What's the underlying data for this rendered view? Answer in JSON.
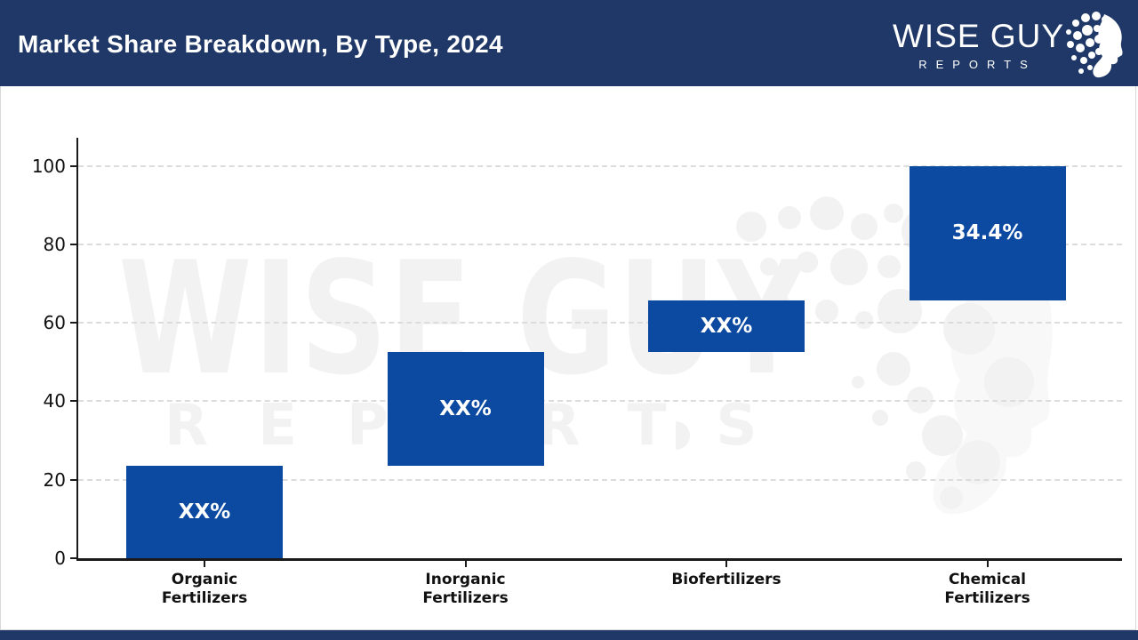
{
  "header": {
    "title": "Market Share Breakdown, By Type, 2024",
    "bg_color": "#1f3867",
    "logo": {
      "brand": "WISE GUY",
      "sub": "REPORTS"
    }
  },
  "watermark": {
    "brand": "WISE GUY",
    "sub": "REPORTS"
  },
  "chart_data": {
    "type": "bar",
    "variant": "floating-waterfall",
    "title": "Market Share Breakdown, By Type, 2024",
    "categories": [
      "Organic Fertilizers",
      "Inorganic Fertilizers",
      "Biofertilizers",
      "Chemical Fertilizers"
    ],
    "segments": [
      {
        "category": "Organic Fertilizers",
        "start": 0,
        "end": 23.5,
        "label": "XX%"
      },
      {
        "category": "Inorganic Fertilizers",
        "start": 23.5,
        "end": 52.5,
        "label": "XX%"
      },
      {
        "category": "Biofertilizers",
        "start": 52.5,
        "end": 65.6,
        "label": "XX%"
      },
      {
        "category": "Chemical Fertilizers",
        "start": 65.6,
        "end": 100,
        "label": "34.4%"
      }
    ],
    "ylim": [
      0,
      100
    ],
    "yticks": [
      0,
      20,
      40,
      60,
      80,
      100
    ],
    "grid": {
      "horizontal": true,
      "style": "dashed",
      "color": "#dcdcdc"
    },
    "bar_color": "#0c4aa2",
    "bar_label_color": "#ffffff",
    "axis_color": "#1a1a1a",
    "xlabel": "",
    "ylabel": ""
  }
}
